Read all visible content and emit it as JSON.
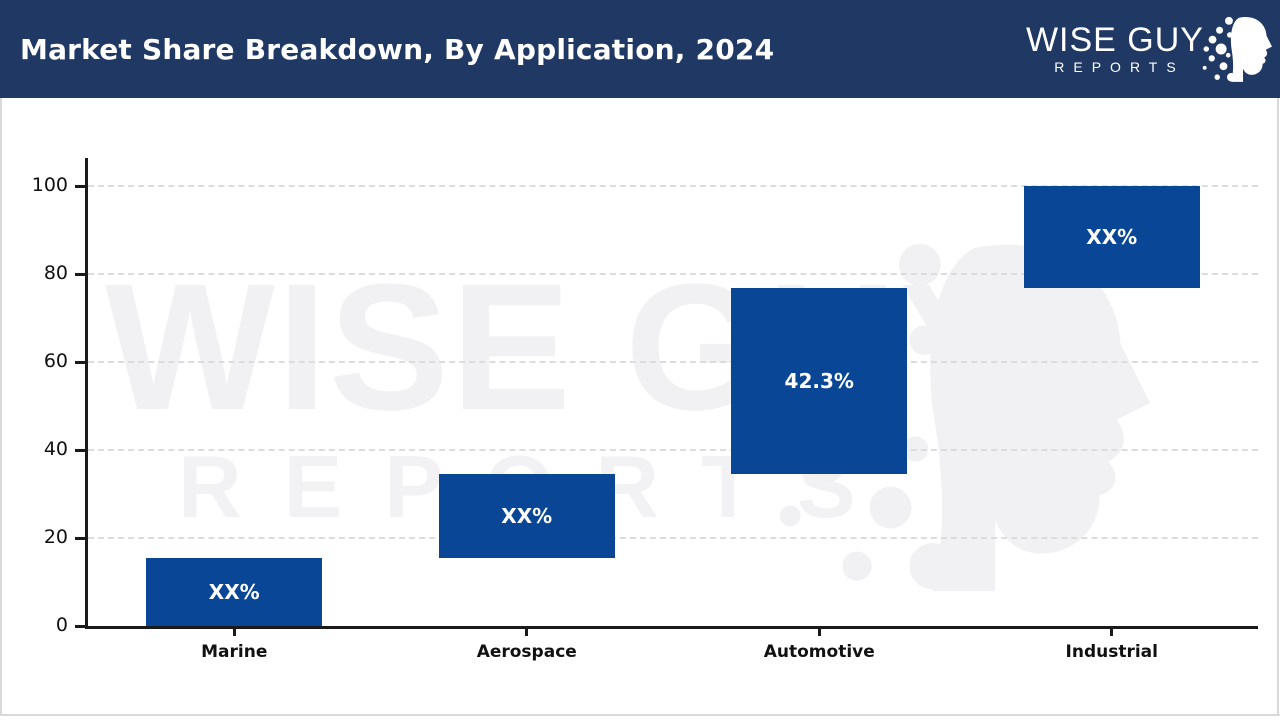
{
  "header": {
    "title": "Market Share Breakdown, By Application, 2024",
    "bg_color": "#1f3864",
    "logo": {
      "line1": "WISE GUY",
      "line2": "REPORTS"
    }
  },
  "watermark": {
    "line1": "WISE GUY",
    "line2": "REPORTS"
  },
  "chart_data": {
    "type": "bar",
    "subtype": "floating-waterfall",
    "title": "Market Share Breakdown, By Application, 2024",
    "xlabel": "",
    "ylabel": "",
    "categories": [
      "Marine",
      "Aerospace",
      "Automotive",
      "Industrial"
    ],
    "segments": [
      {
        "category": "Marine",
        "start": 0,
        "end": 15.4,
        "label": "XX%"
      },
      {
        "category": "Aerospace",
        "start": 15.4,
        "end": 34.6,
        "label": "XX%"
      },
      {
        "category": "Automotive",
        "start": 34.6,
        "end": 76.9,
        "label": "42.3%"
      },
      {
        "category": "Industrial",
        "start": 76.9,
        "end": 100,
        "label": "XX%"
      }
    ],
    "yticks": [
      0,
      20,
      40,
      60,
      80,
      100
    ],
    "ylim": [
      0,
      106
    ],
    "grid": "horizontal-dashed",
    "colors": {
      "bar": "#0a4696",
      "bar_label": "#ffffff",
      "grid": "#dcdcdc",
      "axis": "#1a1a1a",
      "header_bg": "#1f3864",
      "watermark": "#f1f1f4"
    }
  }
}
